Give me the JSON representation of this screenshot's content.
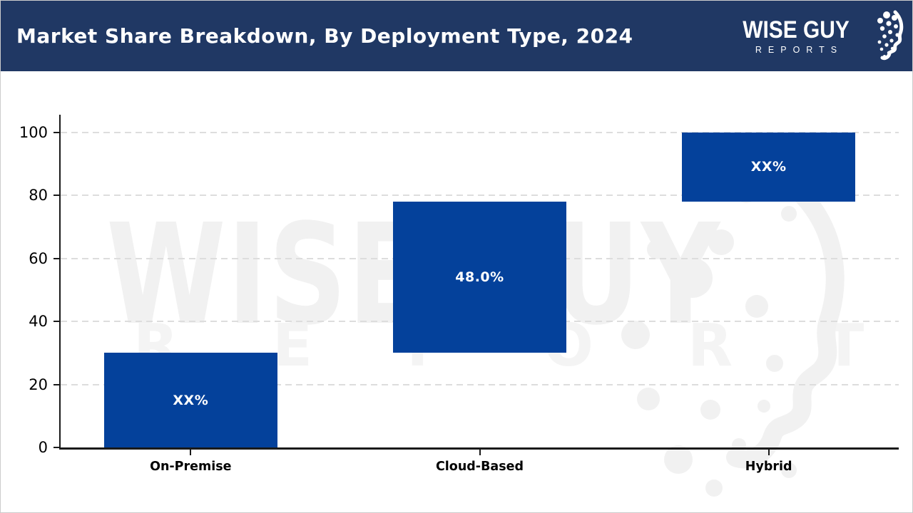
{
  "header": {
    "title": "Market Share Breakdown, By Deployment Type, 2024",
    "logo": {
      "line1": "WISE GUY",
      "line2": "REPORTS"
    }
  },
  "watermark": {
    "line1": "WISE GUY",
    "line2": "REPORTS"
  },
  "colors": {
    "header_bg": "#203864",
    "bar": "#04419b",
    "grid": "#dddddd",
    "axis": "#1a1a1a",
    "bar_label": "#ffffff",
    "watermark": "#f1f1f1"
  },
  "chart_data": {
    "type": "bar",
    "subtype": "waterfall",
    "title": "Market Share Breakdown, By Deployment Type, 2024",
    "xlabel": "",
    "ylabel": "",
    "categories": [
      "On-Premise",
      "Cloud-Based",
      "Hybrid"
    ],
    "segments": [
      {
        "category": "On-Premise",
        "start": 0,
        "end": 30,
        "label": "XX%"
      },
      {
        "category": "Cloud-Based",
        "start": 30,
        "end": 78,
        "label": "48.0%"
      },
      {
        "category": "Hybrid",
        "start": 78,
        "end": 100,
        "label": "XX%"
      }
    ],
    "yticks": [
      0,
      20,
      40,
      60,
      80,
      100
    ],
    "ylim": [
      0,
      105.6
    ],
    "grid": true,
    "legend": false,
    "bar_color": "#04419b"
  }
}
